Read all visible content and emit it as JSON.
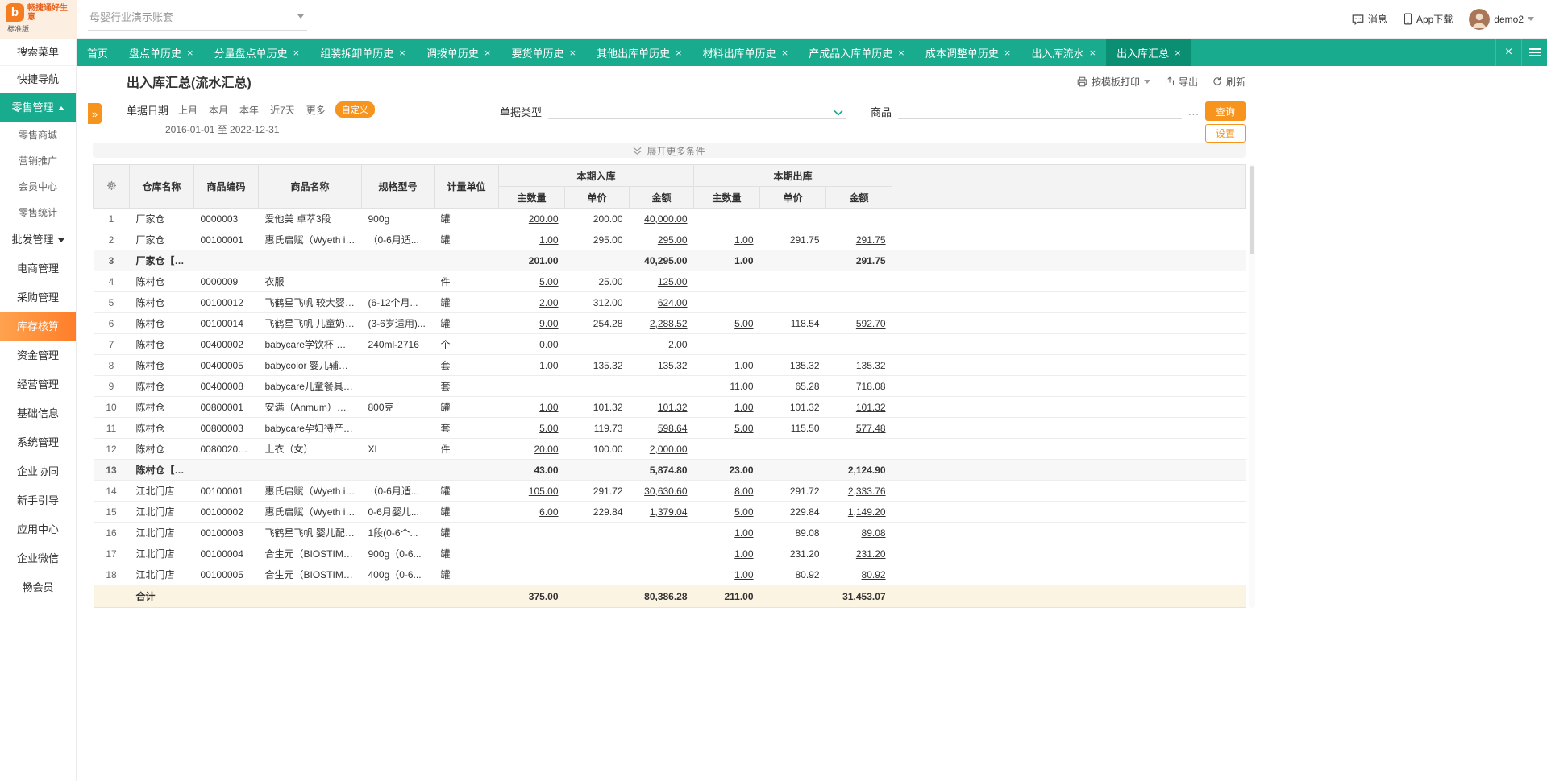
{
  "glyphs": {
    "tab_close": "×",
    "panel_expand": "»",
    "product_more": "..."
  },
  "colors": {
    "teal": "#18ab8e",
    "teal_dark": "#0b8f73",
    "orange": "#f7941e",
    "total_row_bg": "#fcf4e3"
  },
  "topbar": {
    "logo_title": "畅捷通好生意",
    "logo_badge": "标准版",
    "account_value": "母婴行业演示账套",
    "messages": "消息",
    "app_download": "App下载",
    "username": "demo2"
  },
  "sidebar": {
    "items": [
      {
        "label": "搜索菜单",
        "type": "top"
      },
      {
        "label": "快捷导航",
        "type": "top"
      },
      {
        "label": "零售管理",
        "type": "group-open"
      },
      {
        "label": "零售商城",
        "type": "child"
      },
      {
        "label": "营销推广",
        "type": "child"
      },
      {
        "label": "会员中心",
        "type": "child"
      },
      {
        "label": "零售统计",
        "type": "child"
      },
      {
        "label": "批发管理",
        "type": "group-closed"
      },
      {
        "label": "电商管理",
        "type": "item"
      },
      {
        "label": "采购管理",
        "type": "item"
      },
      {
        "label": "库存核算",
        "type": "item-active"
      },
      {
        "label": "资金管理",
        "type": "item"
      },
      {
        "label": "经营管理",
        "type": "item"
      },
      {
        "label": "基础信息",
        "type": "item"
      },
      {
        "label": "系统管理",
        "type": "item"
      },
      {
        "label": "企业协同",
        "type": "item"
      },
      {
        "label": "新手引导",
        "type": "item"
      },
      {
        "label": "应用中心",
        "type": "item"
      },
      {
        "label": "企业微信",
        "type": "item"
      },
      {
        "label": "畅会员",
        "type": "item"
      }
    ]
  },
  "tabs": [
    {
      "label": "首页",
      "closable": false,
      "active": false
    },
    {
      "label": "盘点单历史",
      "closable": true,
      "active": false
    },
    {
      "label": "分量盘点单历史",
      "closable": true,
      "active": false
    },
    {
      "label": "组装拆卸单历史",
      "closable": true,
      "active": false
    },
    {
      "label": "调拨单历史",
      "closable": true,
      "active": false
    },
    {
      "label": "要货单历史",
      "closable": true,
      "active": false
    },
    {
      "label": "其他出库单历史",
      "closable": true,
      "active": false
    },
    {
      "label": "材料出库单历史",
      "closable": true,
      "active": false
    },
    {
      "label": "产成品入库单历史",
      "closable": true,
      "active": false
    },
    {
      "label": "成本调整单历史",
      "closable": true,
      "active": false
    },
    {
      "label": "出入库流水",
      "closable": true,
      "active": false
    },
    {
      "label": "出入库汇总",
      "closable": true,
      "active": true
    }
  ],
  "page": {
    "title": "出入库汇总(流水汇总)",
    "tools": {
      "print": "按模板打印",
      "export": "导出",
      "refresh": "刷新"
    }
  },
  "filters": {
    "date_label": "单据日期",
    "quick_options": [
      "上月",
      "本月",
      "本年",
      "近7天",
      "更多"
    ],
    "custom_badge": "自定义",
    "date_range": "2016-01-01 至 2022-12-31",
    "doc_type_label": "单据类型",
    "product_label": "商品",
    "search_button": "查询",
    "settings_button": "设置",
    "expand_more": "展开更多条件"
  },
  "table": {
    "fixed_headers": [
      "仓库名称",
      "商品编码",
      "商品名称",
      "规格型号",
      "计量单位"
    ],
    "groups": [
      {
        "label": "本期入库",
        "columns": [
          "主数量",
          "单价",
          "金额"
        ]
      },
      {
        "label": "本期出库",
        "columns": [
          "主数量",
          "单价",
          "金额"
        ]
      }
    ],
    "rows": [
      {
        "idx": "1",
        "warehouse": "厂家仓",
        "code": "0000003",
        "name": "爱他美 卓萃3段",
        "spec": "900g",
        "unit": "罐",
        "in_qty": "200.00",
        "in_price": "200.00",
        "in_amt": "40,000.00",
        "out_qty": "",
        "out_price": "",
        "out_amt": "",
        "subtotal": false
      },
      {
        "idx": "2",
        "warehouse": "厂家仓",
        "code": "00100001",
        "name": "惠氏启赋（Wyeth illu...",
        "spec": "（0-6月适...",
        "unit": "罐",
        "in_qty": "1.00",
        "in_price": "295.00",
        "in_amt": "295.00",
        "out_qty": "1.00",
        "out_price": "291.75",
        "out_amt": "291.75",
        "subtotal": false
      },
      {
        "idx": "3",
        "warehouse": "厂家仓【小...",
        "code": "",
        "name": "",
        "spec": "",
        "unit": "",
        "in_qty": "201.00",
        "in_price": "",
        "in_amt": "40,295.00",
        "out_qty": "1.00",
        "out_price": "",
        "out_amt": "291.75",
        "subtotal": true
      },
      {
        "idx": "4",
        "warehouse": "陈村仓",
        "code": "0000009",
        "name": "衣服",
        "spec": "",
        "unit": "件",
        "in_qty": "5.00",
        "in_price": "25.00",
        "in_amt": "125.00",
        "out_qty": "",
        "out_price": "",
        "out_amt": "",
        "subtotal": false
      },
      {
        "idx": "5",
        "warehouse": "陈村仓",
        "code": "00100012",
        "name": "飞鹤星飞帆 较大婴儿配...",
        "spec": "(6-12个月...",
        "unit": "罐",
        "in_qty": "2.00",
        "in_price": "312.00",
        "in_amt": "624.00",
        "out_qty": "",
        "out_price": "",
        "out_amt": "",
        "subtotal": false
      },
      {
        "idx": "6",
        "warehouse": "陈村仓",
        "code": "00100014",
        "name": "飞鹤星飞帆 儿童奶粉 4...",
        "spec": "(3-6岁适用)...",
        "unit": "罐",
        "in_qty": "9.00",
        "in_price": "254.28",
        "in_amt": "2,288.52",
        "out_qty": "5.00",
        "out_price": "118.54",
        "out_amt": "592.70",
        "subtotal": false
      },
      {
        "idx": "7",
        "warehouse": "陈村仓",
        "code": "00400002",
        "name": "babycare学饮杯 儿童...",
        "spec": "240ml-2716",
        "unit": "个",
        "in_qty": "0.00",
        "in_price": "",
        "in_amt": "2.00",
        "out_qty": "",
        "out_price": "",
        "out_amt": "",
        "subtotal": false
      },
      {
        "idx": "8",
        "warehouse": "陈村仓",
        "code": "00400005",
        "name": "babycolor 婴儿辅食机 ...",
        "spec": "",
        "unit": "套",
        "in_qty": "1.00",
        "in_price": "135.32",
        "in_amt": "135.32",
        "out_qty": "1.00",
        "out_price": "135.32",
        "out_amt": "135.32",
        "subtotal": false
      },
      {
        "idx": "9",
        "warehouse": "陈村仓",
        "code": "00400008",
        "name": "babycare儿童餐具 婴...",
        "spec": "",
        "unit": "套",
        "in_qty": "",
        "in_price": "",
        "in_amt": "",
        "out_qty": "11.00",
        "out_price": "65.28",
        "out_amt": "718.08",
        "subtotal": false
      },
      {
        "idx": "10",
        "warehouse": "陈村仓",
        "code": "00800001",
        "name": "安满（Anmum）智孕...",
        "spec": "800克",
        "unit": "罐",
        "in_qty": "1.00",
        "in_price": "101.32",
        "in_amt": "101.32",
        "out_qty": "1.00",
        "out_price": "101.32",
        "out_amt": "101.32",
        "subtotal": false
      },
      {
        "idx": "11",
        "warehouse": "陈村仓",
        "code": "00800003",
        "name": "babycare孕妇待产包 ...",
        "spec": "",
        "unit": "套",
        "in_qty": "5.00",
        "in_price": "119.73",
        "in_amt": "598.64",
        "out_qty": "5.00",
        "out_price": "115.50",
        "out_amt": "577.48",
        "subtotal": false
      },
      {
        "idx": "12",
        "warehouse": "陈村仓",
        "code": "008002000...",
        "name": "上衣（女）",
        "spec": "XL",
        "unit": "件",
        "in_qty": "20.00",
        "in_price": "100.00",
        "in_amt": "2,000.00",
        "out_qty": "",
        "out_price": "",
        "out_amt": "",
        "subtotal": false
      },
      {
        "idx": "13",
        "warehouse": "陈村仓【小...",
        "code": "",
        "name": "",
        "spec": "",
        "unit": "",
        "in_qty": "43.00",
        "in_price": "",
        "in_amt": "5,874.80",
        "out_qty": "23.00",
        "out_price": "",
        "out_amt": "2,124.90",
        "subtotal": true
      },
      {
        "idx": "14",
        "warehouse": "江北门店",
        "code": "00100001",
        "name": "惠氏启赋（Wyeth illu...",
        "spec": "（0-6月适...",
        "unit": "罐",
        "in_qty": "105.00",
        "in_price": "291.72",
        "in_amt": "30,630.60",
        "out_qty": "8.00",
        "out_price": "291.72",
        "out_amt": "2,333.76",
        "subtotal": false
      },
      {
        "idx": "15",
        "warehouse": "江北门店",
        "code": "00100002",
        "name": "惠氏启赋（Wyeth illu...",
        "spec": "0-6月婴儿...",
        "unit": "罐",
        "in_qty": "6.00",
        "in_price": "229.84",
        "in_amt": "1,379.04",
        "out_qty": "5.00",
        "out_price": "229.84",
        "out_amt": "1,149.20",
        "subtotal": false
      },
      {
        "idx": "16",
        "warehouse": "江北门店",
        "code": "00100003",
        "name": "飞鹤星飞帆 婴儿配方奶...",
        "spec": "1段(0-6个...",
        "unit": "罐",
        "in_qty": "",
        "in_price": "",
        "in_amt": "",
        "out_qty": "1.00",
        "out_price": "89.08",
        "out_amt": "89.08",
        "subtotal": false
      },
      {
        "idx": "17",
        "warehouse": "江北门店",
        "code": "00100004",
        "name": "合生元（BIOSTIME）...",
        "spec": "900g（0-6...",
        "unit": "罐",
        "in_qty": "",
        "in_price": "",
        "in_amt": "",
        "out_qty": "1.00",
        "out_price": "231.20",
        "out_amt": "231.20",
        "subtotal": false
      },
      {
        "idx": "18",
        "warehouse": "江北门店",
        "code": "00100005",
        "name": "合生元（BIOSTIME）...",
        "spec": "400g（0-6...",
        "unit": "罐",
        "in_qty": "",
        "in_price": "",
        "in_amt": "",
        "out_qty": "1.00",
        "out_price": "80.92",
        "out_amt": "80.92",
        "subtotal": false
      }
    ],
    "footer": {
      "label": "合计",
      "in_qty": "375.00",
      "in_amt": "80,386.28",
      "out_qty": "211.00",
      "out_amt": "31,453.07"
    }
  }
}
